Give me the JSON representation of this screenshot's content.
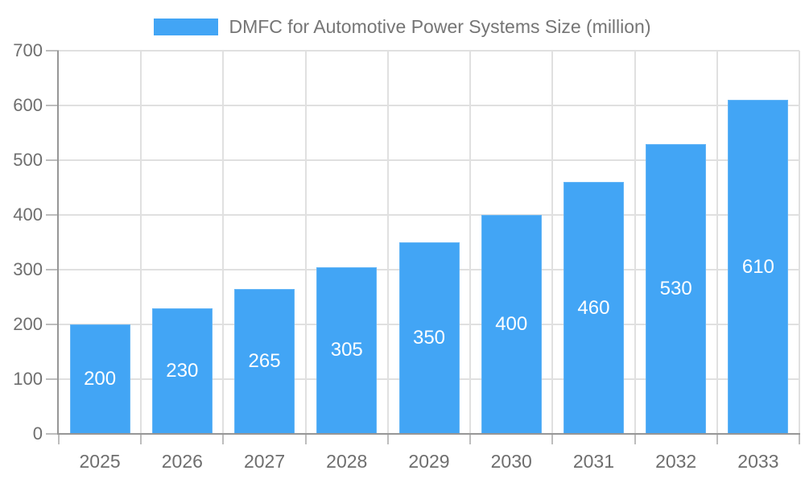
{
  "legend": {
    "label": "DMFC for Automotive Power Systems Size (million)"
  },
  "chart_data": {
    "type": "bar",
    "title": "DMFC for Automotive Power Systems Size (million)",
    "categories": [
      "2025",
      "2026",
      "2027",
      "2028",
      "2029",
      "2030",
      "2031",
      "2032",
      "2033"
    ],
    "values": [
      200,
      230,
      265,
      305,
      350,
      400,
      460,
      530,
      610
    ],
    "xlabel": "",
    "ylabel": "",
    "ylim": [
      0,
      700
    ],
    "y_ticks": [
      0,
      100,
      200,
      300,
      400,
      500,
      600,
      700
    ],
    "grid": true,
    "legend_position": "top",
    "value_labels": "inside-center",
    "style": {
      "bar_color": "#42A5F5",
      "bar_border_color": "#64B5F6",
      "grid_color": "#E0E0E0",
      "axis_line_color": "#969696",
      "tick_color": "#BDBDBD",
      "axis_label_color": "#6E6E6E",
      "value_label_color": "#FFFFFF",
      "legend_text_color": "#757575",
      "background": "#FFFFFF"
    }
  }
}
